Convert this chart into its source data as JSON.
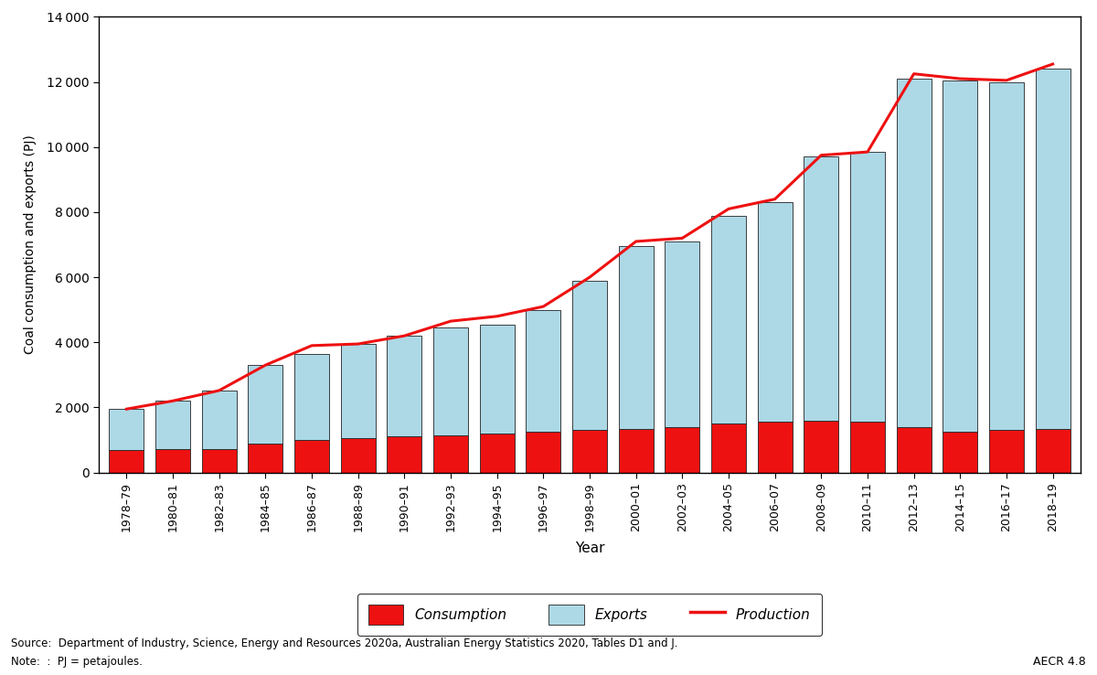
{
  "years": [
    "1978–79",
    "1980–81",
    "1982–83",
    "1984–85",
    "1986–87",
    "1988–89",
    "1990–91",
    "1992–93",
    "1994–95",
    "1996–97",
    "1998–99",
    "2000–01",
    "2002–03",
    "2004–05",
    "2006–07",
    "2008–09",
    "2010–11",
    "2012–13",
    "2014–15",
    "2016–17",
    "2018–19"
  ],
  "consumption": [
    700,
    720,
    720,
    900,
    1000,
    1050,
    1100,
    1150,
    1200,
    1250,
    1300,
    1350,
    1400,
    1500,
    1550,
    1600,
    1550,
    1400,
    1250,
    1300,
    1350
  ],
  "exports": [
    1250,
    1480,
    1800,
    2400,
    2650,
    2900,
    3100,
    3300,
    3350,
    3750,
    4600,
    5600,
    5700,
    6400,
    6750,
    8100,
    8300,
    10700,
    10800,
    10700,
    11050
  ],
  "production": [
    1950,
    2200,
    2520,
    3300,
    3900,
    3950,
    4200,
    4650,
    4800,
    5100,
    6000,
    7100,
    7200,
    8100,
    8400,
    9750,
    9850,
    12250,
    12100,
    12050,
    12550
  ],
  "ylabel": "Coal consumption and exports (PJ)",
  "xlabel": "Year",
  "ylim": [
    0,
    14000
  ],
  "yticks": [
    0,
    2000,
    4000,
    6000,
    8000,
    10000,
    12000,
    14000
  ],
  "bar_color_consumption": "#EE1111",
  "bar_color_exports": "#ADD8E6",
  "bar_edgecolor": "#222222",
  "line_color": "#EE1111",
  "legend_consumption": "Consumption",
  "legend_exports": "Exports",
  "legend_production": "Production",
  "source_text": "Source:  Department of Industry, Science, Energy and Resources 2020a, Australian Energy Statistics 2020, Tables D1 and J.",
  "note_text": "Note:  :  PJ = petajoules.",
  "aecr_text": "AECR 4.8",
  "background_color": "#FFFFFF",
  "plot_bg_color": "#FFFFFF"
}
